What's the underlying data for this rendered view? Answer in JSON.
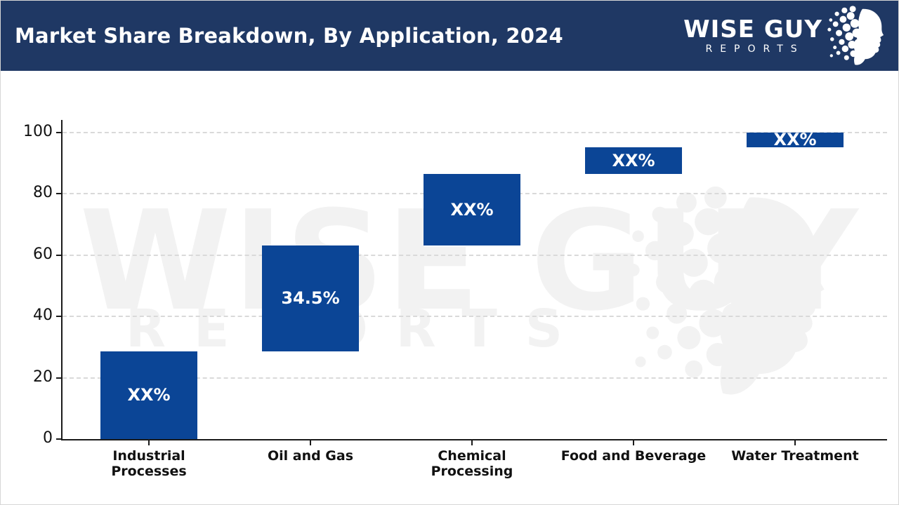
{
  "header": {
    "title": "Market Share Breakdown, By Application, 2024",
    "logo": {
      "wordmark": "WISE GUY",
      "subtext": "REPORTS"
    }
  },
  "watermark": {
    "line1": "WISE GUY",
    "line2": "REPORTS"
  },
  "chart_data": {
    "type": "bar",
    "subtype": "waterfall-floating-bars",
    "title": "Market Share Breakdown, By Application, 2024",
    "xlabel": "",
    "ylabel": "",
    "ylim": [
      0,
      100
    ],
    "yticks": [
      0,
      20,
      40,
      60,
      80,
      100
    ],
    "grid": "horizontal dashed at each ytick except 0",
    "legend": "none",
    "categories": [
      "Industrial\nProcesses",
      "Oil and Gas",
      "Chemical\nProcessing",
      "Food and Beverage",
      "Water Treatment"
    ],
    "segments": [
      {
        "category": "Industrial Processes",
        "start": 0,
        "end": 28.6,
        "label": "XX%"
      },
      {
        "category": "Oil and Gas",
        "start": 28.6,
        "end": 63.1,
        "label": "34.5%"
      },
      {
        "category": "Chemical Processing",
        "start": 63.1,
        "end": 86.4,
        "label": "XX%"
      },
      {
        "category": "Food and Beverage",
        "start": 86.4,
        "end": 95.1,
        "label": "XX%"
      },
      {
        "category": "Water Treatment",
        "start": 95.1,
        "end": 100,
        "label": "XX%"
      }
    ],
    "bar_color": "#0B4596",
    "bar_label_color": "#ffffff"
  },
  "colors": {
    "header_bg": "#1F3864",
    "bar": "#0B4596",
    "axis": "#1a1a1a",
    "gridline": "#d9d9d9",
    "watermark": "#f2f2f2",
    "page_border": "#d6d6d6"
  }
}
